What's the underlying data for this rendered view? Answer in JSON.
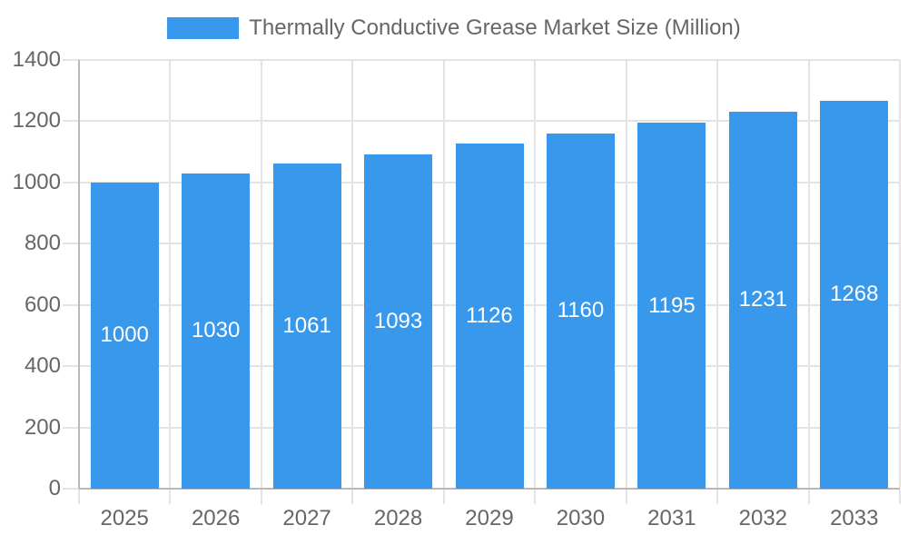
{
  "chart_data": {
    "type": "bar",
    "title": "Thermally Conductive Grease Market Size (Million)",
    "legend": {
      "position": "top",
      "entries": [
        "Thermally Conductive Grease Market Size (Million)"
      ]
    },
    "categories": [
      "2025",
      "2026",
      "2027",
      "2028",
      "2029",
      "2030",
      "2031",
      "2032",
      "2033"
    ],
    "series": [
      {
        "name": "Thermally Conductive Grease Market Size (Million)",
        "values": [
          1000,
          1030,
          1061,
          1093,
          1126,
          1160,
          1195,
          1231,
          1268
        ]
      }
    ],
    "value_labels": {
      "visible": true,
      "position": "inside-middle",
      "color": "#ffffff"
    },
    "xlabel": "",
    "ylabel": "",
    "ylim": [
      0,
      1400
    ],
    "ytick_step": 200,
    "ytick_labels": [
      "0",
      "200",
      "400",
      "600",
      "800",
      "1000",
      "1200",
      "1400"
    ],
    "grid": true,
    "colors": {
      "bar": "#3899ec",
      "axis_text": "#666666",
      "value_label_text": "#ffffff",
      "grid_line": "#e3e3e3",
      "axis_line": "#b8b8b8",
      "background": "#ffffff"
    }
  }
}
